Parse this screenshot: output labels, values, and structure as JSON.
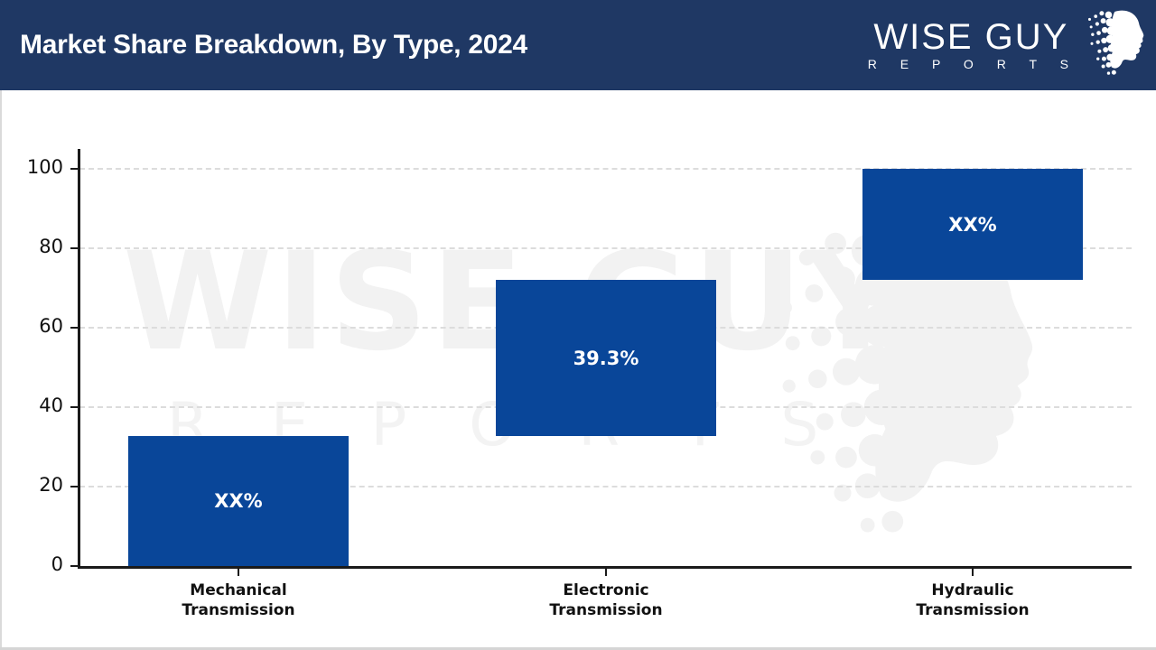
{
  "header": {
    "title": "Market Share Breakdown, By Type, 2024",
    "bg_color": "#1f3864",
    "logo": {
      "line1": "WISE GUY",
      "line2": "R E P O R T S"
    }
  },
  "watermark": {
    "line1": "WISE GUY",
    "line2": "R E P O R T S"
  },
  "chart_data": {
    "type": "bar",
    "subtype": "waterfall-stacked-breakdown",
    "title": "Market Share Breakdown, By Type, 2024",
    "categories": [
      "Mechanical Transmission",
      "Electronic Transmission",
      "Hydraulic Transmission"
    ],
    "bars": [
      {
        "category": "Mechanical Transmission",
        "start": 0,
        "end": 32.7,
        "value": 32.7,
        "label": "XX%"
      },
      {
        "category": "Electronic Transmission",
        "start": 32.7,
        "end": 72,
        "value": 39.3,
        "label": "39.3%"
      },
      {
        "category": "Hydraulic Transmission",
        "start": 72,
        "end": 100,
        "value": 28,
        "label": "XX%"
      }
    ],
    "xlabel": "",
    "ylabel": "",
    "ylim": [
      0,
      105
    ],
    "yticks": [
      0,
      20,
      40,
      60,
      80,
      100
    ],
    "grid": true,
    "grid_style": "dashed",
    "legend": "none",
    "bar_color": "#094699",
    "bar_label_color": "#ffffff",
    "axis_color": "#1a1a1a"
  }
}
